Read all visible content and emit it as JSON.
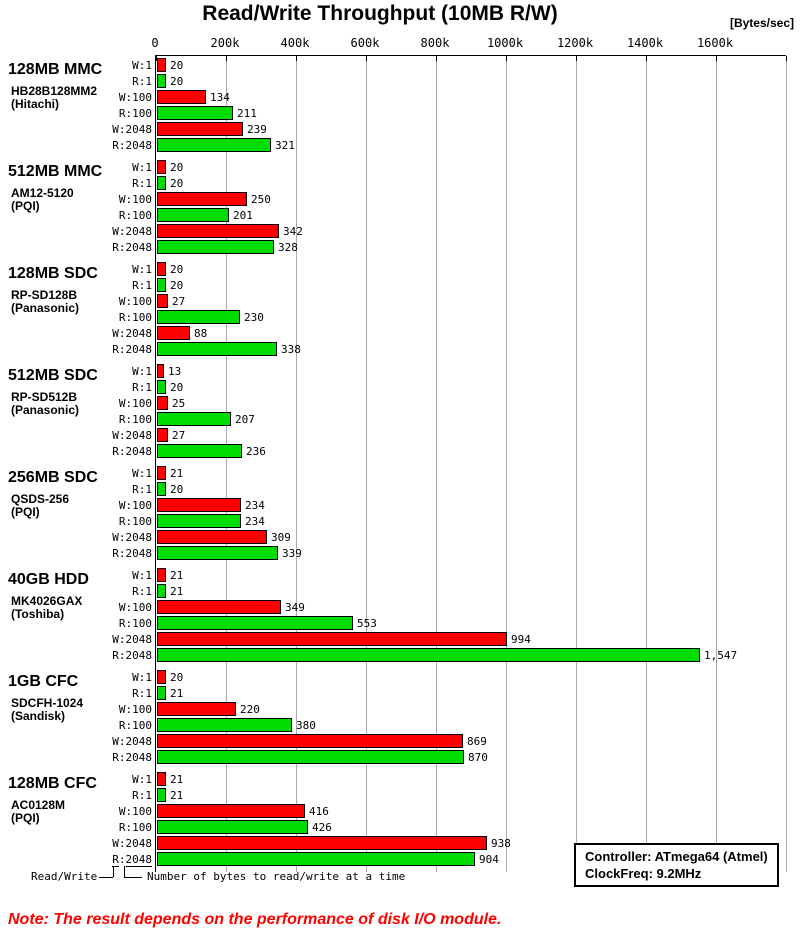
{
  "chart": {
    "title": "Read/Write Throughput (10MB R/W)",
    "unit_label": "[Bytes/sec]",
    "legend_read_write": "Read/Write",
    "legend_bytes_at_a_time": "Number of bytes to read/write at a time",
    "info_box": {
      "controller": "Controller: ATmega64 (Atmel)",
      "clock": "ClockFreq: 9.2MHz"
    },
    "note": "Note: The result depends on the performance of disk I/O module."
  },
  "chart_data": {
    "type": "bar",
    "orientation": "horizontal",
    "title": "Read/Write Throughput (10MB R/W)",
    "xlabel": "[Bytes/sec]",
    "grid": true,
    "value_scale_note": "bar values are in thousands of Bytes/sec (k)",
    "k_multiplier": 1000,
    "xlim_k": [
      0,
      1800
    ],
    "x_axis": {
      "ticks": [
        {
          "label": "0",
          "value_k": 0
        },
        {
          "label": "200k",
          "value_k": 200
        },
        {
          "label": "400k",
          "value_k": 400
        },
        {
          "label": "600k",
          "value_k": 600
        },
        {
          "label": "800k",
          "value_k": 800
        },
        {
          "label": "1000k",
          "value_k": 1000
        },
        {
          "label": "1200k",
          "value_k": 1200
        },
        {
          "label": "1400k",
          "value_k": 1400
        },
        {
          "label": "1600k",
          "value_k": 1600
        },
        {
          "label": "",
          "value_k": 1800
        }
      ]
    },
    "row_labels": [
      "W:1",
      "R:1",
      "W:100",
      "R:100",
      "W:2048",
      "R:2048"
    ],
    "row_types": [
      "write",
      "read",
      "write",
      "read",
      "write",
      "read"
    ],
    "series_colors": {
      "write": "#ff0000",
      "read": "#00dd00"
    },
    "groups": [
      {
        "device": "128MB MMC",
        "model": "HB28B128MM2",
        "maker": "(Hitachi)",
        "values": [
          20,
          20,
          134,
          211,
          239,
          321
        ],
        "display": [
          "20",
          "20",
          "134",
          "211",
          "239",
          "321"
        ]
      },
      {
        "device": "512MB MMC",
        "model": "AM12-5120",
        "maker": "(PQI)",
        "values": [
          20,
          20,
          250,
          201,
          342,
          328
        ],
        "display": [
          "20",
          "20",
          "250",
          "201",
          "342",
          "328"
        ]
      },
      {
        "device": "128MB SDC",
        "model": "RP-SD128B",
        "maker": "(Panasonic)",
        "values": [
          20,
          20,
          27,
          230,
          88,
          338
        ],
        "display": [
          "20",
          "20",
          "27",
          "230",
          "88",
          "338"
        ]
      },
      {
        "device": "512MB SDC",
        "model": "RP-SD512B",
        "maker": "(Panasonic)",
        "values": [
          13,
          20,
          25,
          207,
          27,
          236
        ],
        "display": [
          "13",
          "20",
          "25",
          "207",
          "27",
          "236"
        ]
      },
      {
        "device": "256MB SDC",
        "model": "QSDS-256",
        "maker": "(PQI)",
        "values": [
          21,
          20,
          234,
          234,
          309,
          339
        ],
        "display": [
          "21",
          "20",
          "234",
          "234",
          "309",
          "339"
        ]
      },
      {
        "device": "40GB HDD",
        "model": "MK4026GAX",
        "maker": "(Toshiba)",
        "values": [
          21,
          21,
          349,
          553,
          994,
          1547
        ],
        "display": [
          "21",
          "21",
          "349",
          "553",
          "994",
          "1,547"
        ]
      },
      {
        "device": "1GB CFC",
        "model": "SDCFH-1024",
        "maker": "(Sandisk)",
        "values": [
          20,
          21,
          220,
          380,
          869,
          870
        ],
        "display": [
          "20",
          "21",
          "220",
          "380",
          "869",
          "870"
        ]
      },
      {
        "device": "128MB CFC",
        "model": "AC0128M",
        "maker": "(PQI)",
        "values": [
          21,
          21,
          416,
          426,
          938,
          904
        ],
        "display": [
          "21",
          "21",
          "416",
          "426",
          "938",
          "904"
        ]
      }
    ]
  }
}
